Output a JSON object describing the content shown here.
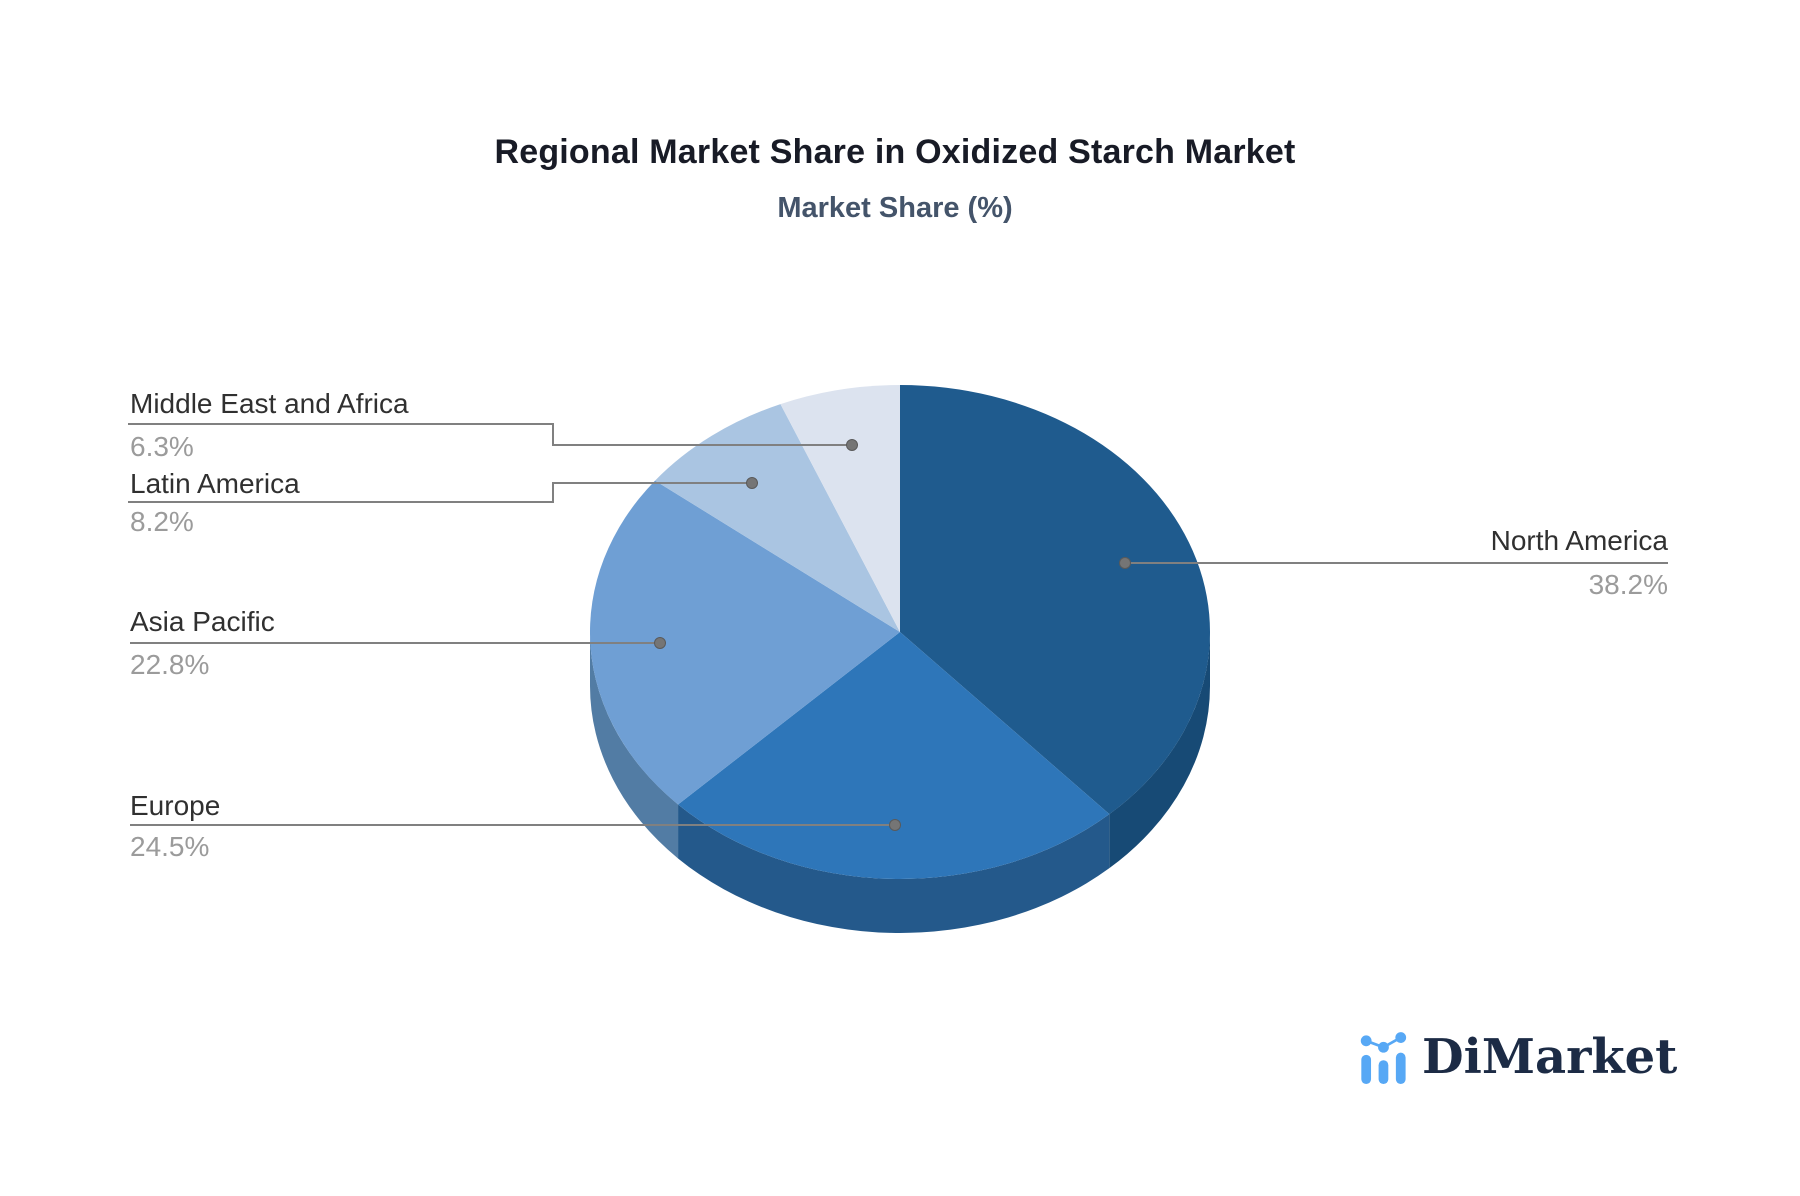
{
  "title": "Regional Market Share in Oxidized Starch Market",
  "subtitle": "Market Share (%)",
  "brand": {
    "name": "DiMarket"
  },
  "style": {
    "leader_line_color": "#808080",
    "label_color": "#303030",
    "value_color": "#9b9b9b",
    "title_color": "#181b26",
    "subtitle_color": "#44546a",
    "logo_icon_color": "#57a8f5",
    "logo_text_color": "#1c2b45"
  },
  "chart_data": {
    "type": "pie",
    "title": "Regional Market Share in Oxidized Starch Market",
    "subtitle": "Market Share (%)",
    "unit": "%",
    "style_3d": true,
    "start_angle_deg": 0,
    "direction": "clockwise",
    "segments": [
      {
        "label": "North America",
        "value": 38.2,
        "display": "38.2%",
        "color": "#1f5b8e",
        "side_color": "#174a75"
      },
      {
        "label": "Europe",
        "value": 24.5,
        "display": "24.5%",
        "color": "#2e76b9",
        "side_color": "#24598b"
      },
      {
        "label": "Asia Pacific",
        "value": 22.8,
        "display": "22.8%",
        "color": "#6f9fd4",
        "side_color": "#527ca4"
      },
      {
        "label": "Latin America",
        "value": 8.2,
        "display": "8.2%",
        "color": "#aac5e2",
        "side_color": "#8aa6c4"
      },
      {
        "label": "Middle East and Africa",
        "value": 6.3,
        "display": "6.3%",
        "color": "#dce3ef",
        "side_color": "#b9c4d6"
      }
    ]
  }
}
